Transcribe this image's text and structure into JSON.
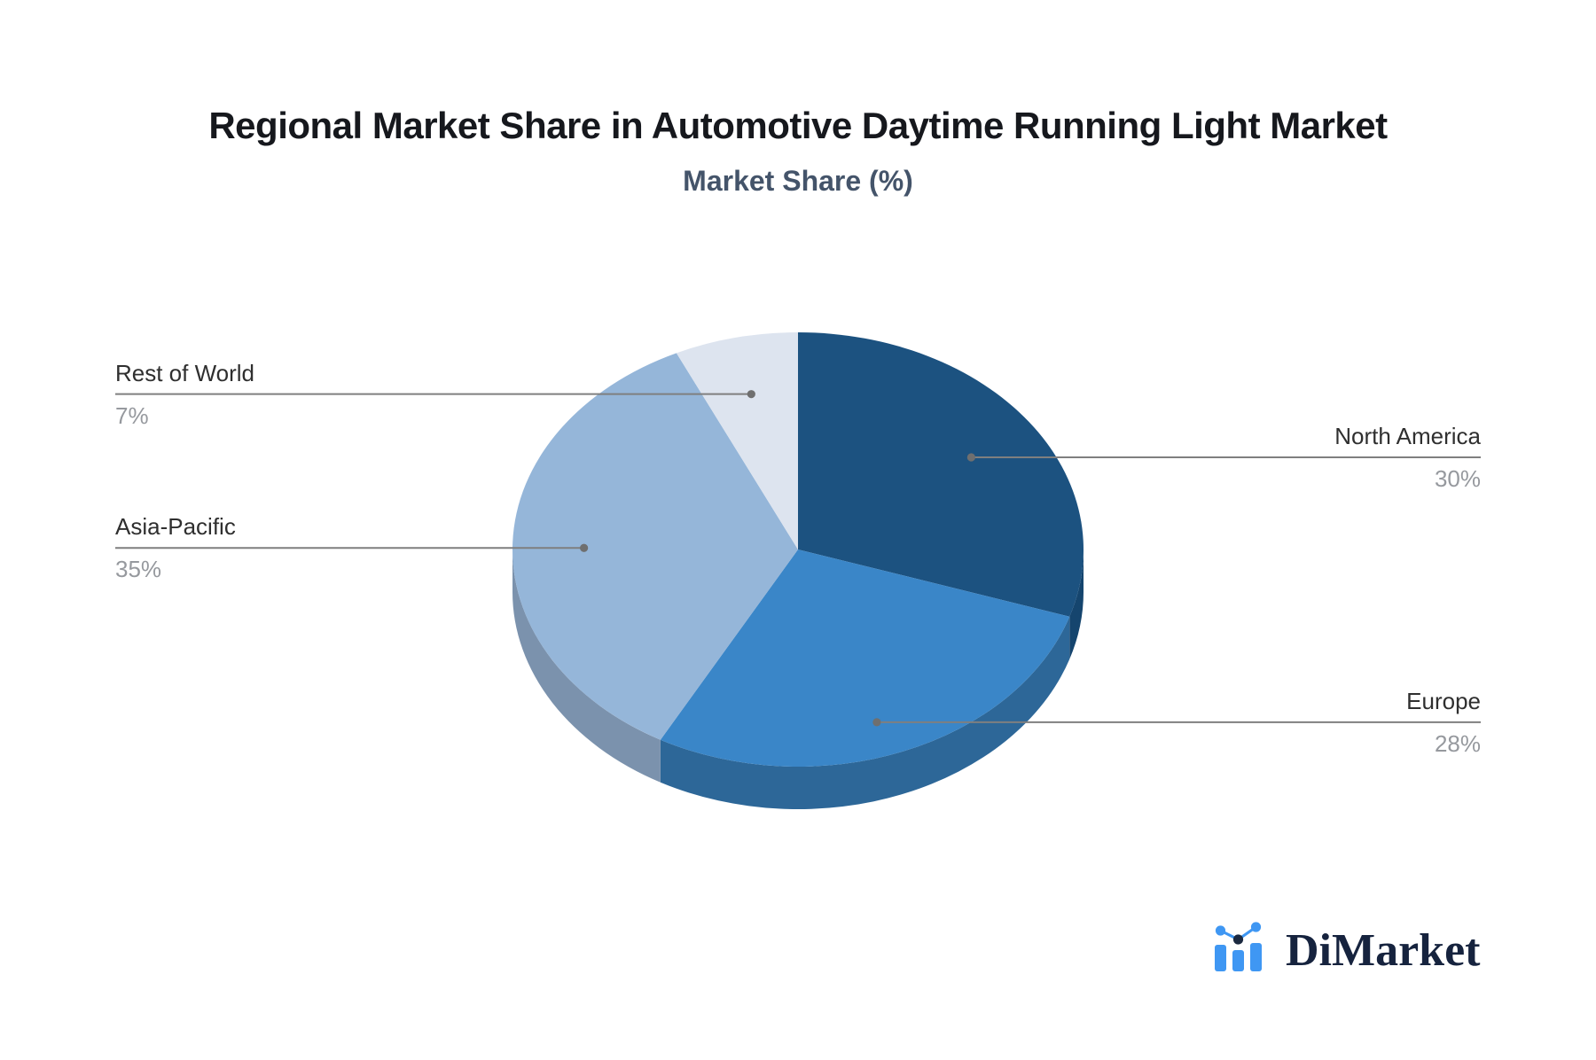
{
  "title": "Regional Market Share in Automotive Daytime Running Light Market",
  "subtitle": "Market Share (%)",
  "brand": {
    "name": "DiMarket",
    "icon": "bar-chart-logo-icon",
    "icon_bar_color": "#3f97f3",
    "icon_dark_dot_color": "#1b2940",
    "text_color": "#16233e"
  },
  "chart_data": {
    "type": "pie",
    "title": "Regional Market Share in Automotive Daytime Running Light Market",
    "subtitle": "Market Share (%)",
    "unit": "%",
    "start_angle_deg": 0,
    "direction": "clockwise",
    "style": "3d",
    "leader_line_color": "#7f7f7f",
    "leader_dot_color": "#6f6f6f",
    "slices": [
      {
        "label": "North America",
        "value": 30,
        "display": "30%",
        "color": "#1c5280",
        "side_color": "#15456e",
        "label_side": "right"
      },
      {
        "label": "Europe",
        "value": 28,
        "display": "28%",
        "color": "#3a86c8",
        "side_color": "#2d6798",
        "label_side": "right"
      },
      {
        "label": "Asia-Pacific",
        "value": 35,
        "display": "35%",
        "color": "#95b6d9",
        "side_color": "#7b92ad",
        "label_side": "left"
      },
      {
        "label": "Rest of World",
        "value": 7,
        "display": "7%",
        "color": "#dde4ef",
        "label_side": "left"
      }
    ]
  }
}
